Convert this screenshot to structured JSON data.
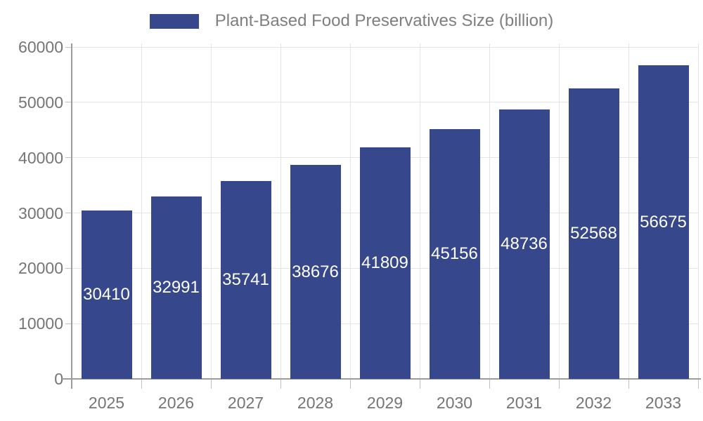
{
  "chart_data": {
    "type": "bar",
    "title": "Plant-Based Food Preservatives Size (billion)",
    "categories": [
      "2025",
      "2026",
      "2027",
      "2028",
      "2029",
      "2030",
      "2031",
      "2032",
      "2033"
    ],
    "values": [
      30410,
      32991,
      35741,
      38676,
      41809,
      45156,
      48736,
      52568,
      56675
    ],
    "xlabel": "",
    "ylabel": "",
    "ylim": [
      0,
      60000
    ],
    "yticks": [
      0,
      10000,
      20000,
      30000,
      40000,
      50000,
      60000
    ],
    "grid": true,
    "legend_position": "top",
    "value_label_position": "inside-center"
  },
  "colors": {
    "bar": "#36478B",
    "bar_label": "#FFFFFF",
    "grid": "#E4E4E4",
    "axis": "#9C9C9C",
    "tick": "#C2C2C2",
    "tick_text": "#757575",
    "legend_text": "#7F7F7F",
    "background": "#FFFFFF"
  }
}
